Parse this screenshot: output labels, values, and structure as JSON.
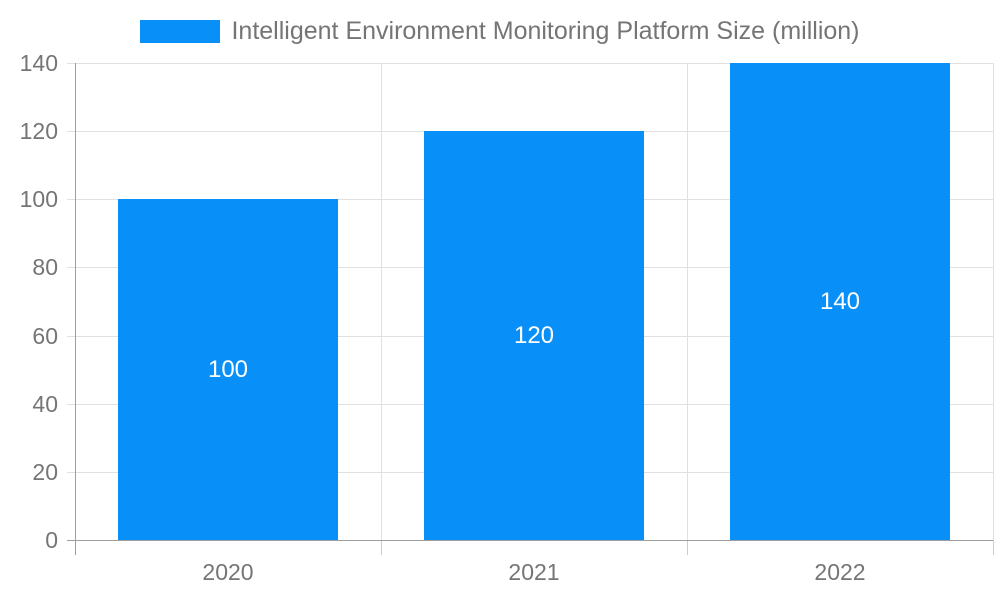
{
  "legend": {
    "label": "Intelligent Environment Monitoring Platform Size (million)"
  },
  "colors": {
    "bar": "#0890f8",
    "grid": "#e0e0e0",
    "axis": "#9e9e9e",
    "boundary_tick": "#cccccc",
    "tick_label": "#757575",
    "data_label": "#ffffff",
    "legend_label": "#757575",
    "background": "#ffffff"
  },
  "chart_data": {
    "type": "bar",
    "categories": [
      "2020",
      "2021",
      "2022"
    ],
    "series": [
      {
        "name": "Intelligent Environment Monitoring Platform Size (million)",
        "values": [
          100,
          120,
          140
        ]
      }
    ],
    "data_labels": [
      "100",
      "120",
      "140"
    ],
    "title": "",
    "xlabel": "",
    "ylabel": "",
    "ylim": [
      0,
      140
    ],
    "yticks": [
      0,
      20,
      40,
      60,
      80,
      100,
      120,
      140
    ],
    "grid": true,
    "legend_position": "top",
    "bar_width_fraction": 0.72
  }
}
